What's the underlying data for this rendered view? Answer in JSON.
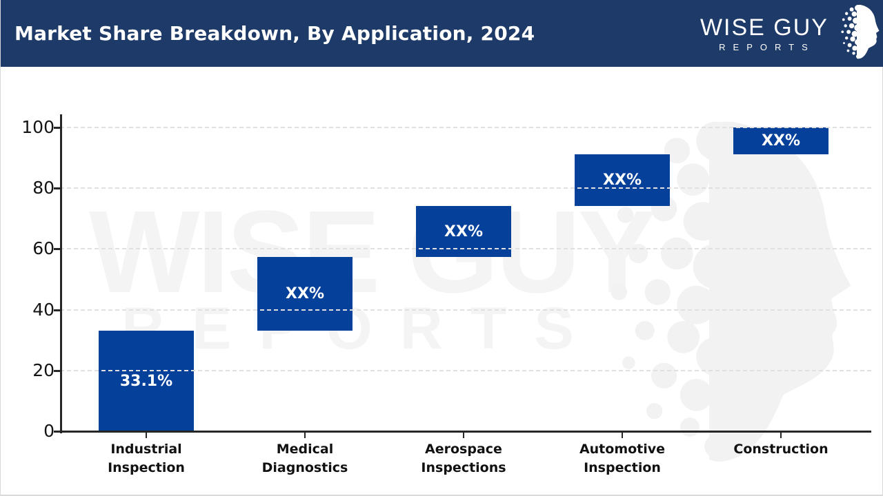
{
  "header": {
    "title": "Market Share Breakdown, By Application, 2024",
    "logo": {
      "line1": "WISE GUY",
      "line2": "REPORTS"
    }
  },
  "watermark": {
    "line1": "WISE GUY",
    "line2": "REPORTS"
  },
  "colors": {
    "header_bg": "#1e3a68",
    "bar": "#05409b",
    "grid": "#e0e0e0",
    "axis": "#262626",
    "bar_label": "#ffffff",
    "watermark": "#f4f4f4",
    "watermark_face": "#f2f2f2"
  },
  "chart_data": {
    "type": "bar",
    "variant": "waterfall",
    "title": "Market Share Breakdown, By Application, 2024",
    "categories": [
      [
        "Industrial",
        "Inspection"
      ],
      [
        "Medical",
        "Diagnostics"
      ],
      [
        "Aerospace",
        "Inspections"
      ],
      [
        "Automotive",
        "Inspection"
      ],
      [
        "Construction"
      ]
    ],
    "segments": [
      {
        "label": "33.1%",
        "start": 0,
        "end": 33.1
      },
      {
        "label": "XX%",
        "start": 33.1,
        "end": 57.3
      },
      {
        "label": "XX%",
        "start": 57.3,
        "end": 74.2
      },
      {
        "label": "XX%",
        "start": 74.2,
        "end": 91.2
      },
      {
        "label": "XX%",
        "start": 91.2,
        "end": 100
      }
    ],
    "xlabel": "",
    "ylabel": "",
    "ylim": [
      0,
      100
    ],
    "yticks": [
      0,
      20,
      40,
      60,
      80,
      100
    ],
    "grid": "horizontal-dashed",
    "legend": "none"
  }
}
